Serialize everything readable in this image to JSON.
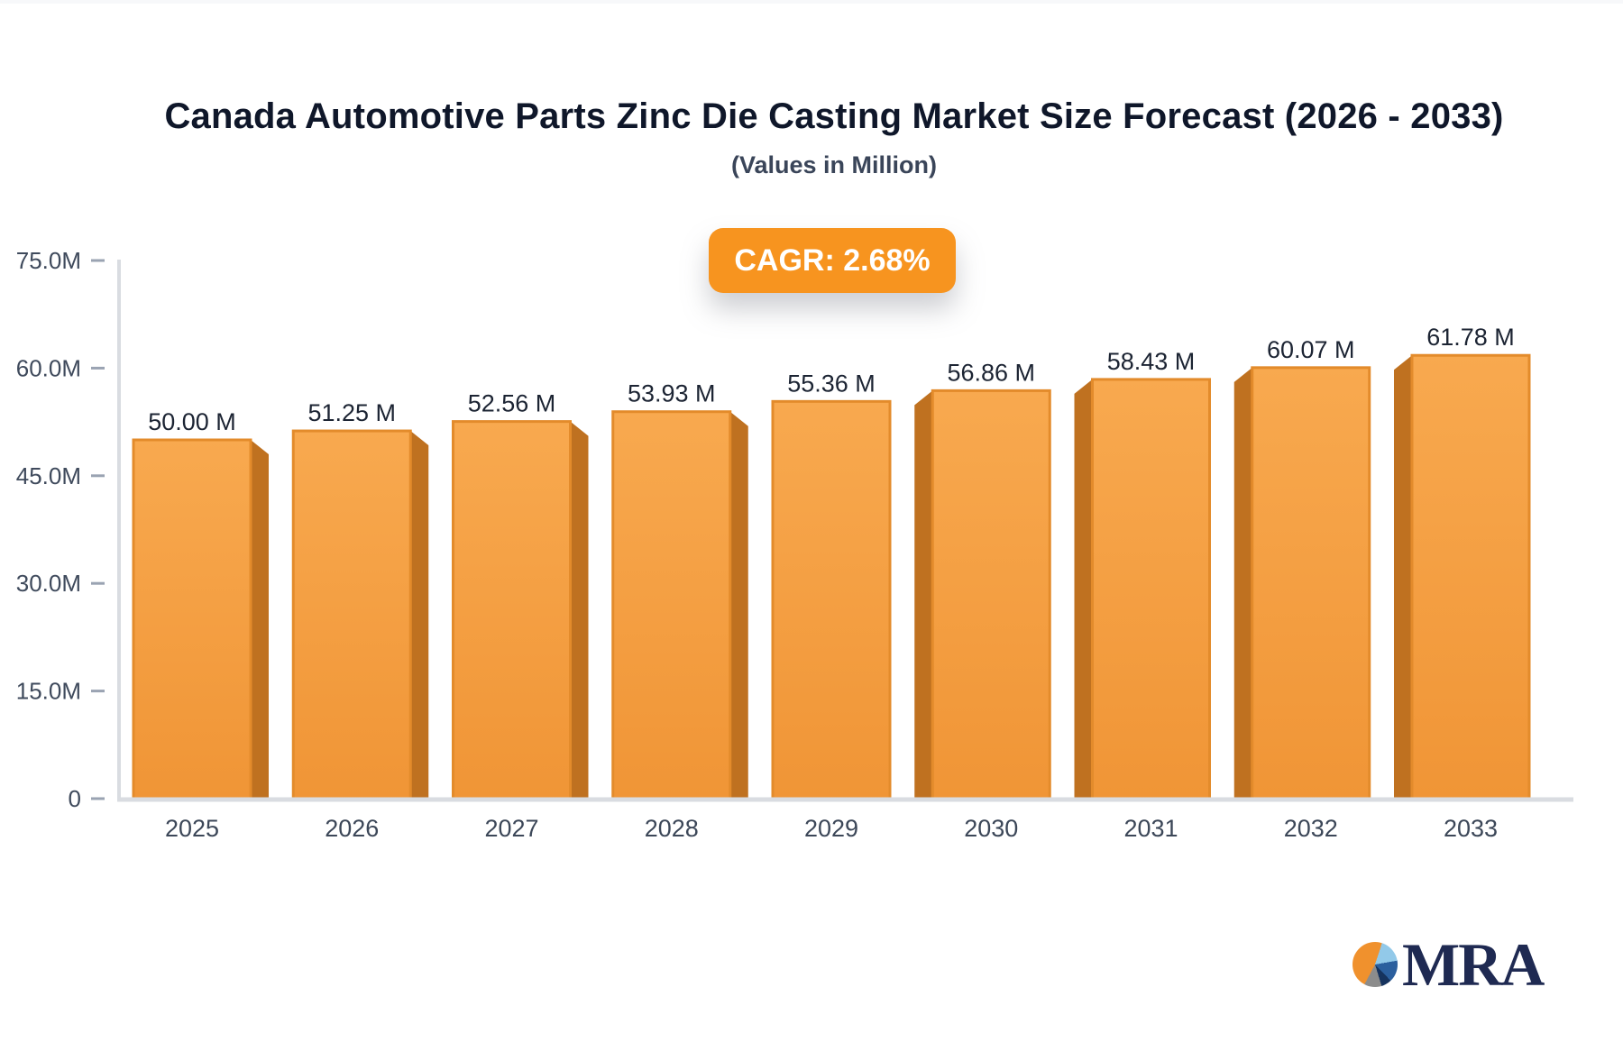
{
  "header": {
    "title": "Canada Automotive Parts Zinc Die Casting Market Size Forecast (2026 - 2033)",
    "subtitle": "(Values in Million)"
  },
  "badge": {
    "label": "CAGR: 2.68%"
  },
  "logo": {
    "text": "MRA"
  },
  "colors": {
    "bar_face_top": "#f8a94f",
    "bar_face_bottom": "#f09536",
    "bar_stroke": "#e38b2b",
    "bar_side": "#bf7120",
    "axis_line": "#d9dce1",
    "tick_dash": "#9aa3b2",
    "tick_text": "#3f4a5c",
    "year_text": "#3c4758",
    "value_text": "#1c2433",
    "badge_bg": "#f7941f",
    "badge_text": "#ffffff",
    "title_text": "#0f172a",
    "subtitle_text": "#3a4559"
  },
  "chart_data": {
    "type": "bar",
    "title": "Canada Automotive Parts Zinc Die Casting Market Size Forecast (2026 - 2033)",
    "subtitle": "(Values in Million)",
    "annotation": "CAGR: 2.68%",
    "categories": [
      "2025",
      "2026",
      "2027",
      "2028",
      "2029",
      "2030",
      "2031",
      "2032",
      "2033"
    ],
    "values": [
      50.0,
      51.25,
      52.56,
      53.93,
      55.36,
      56.86,
      58.43,
      60.07,
      61.78
    ],
    "value_labels": [
      "50.00 M",
      "51.25 M",
      "52.56 M",
      "53.93 M",
      "55.36 M",
      "56.86 M",
      "58.43 M",
      "60.07 M",
      "61.78 M"
    ],
    "xlabel": "",
    "ylabel": "",
    "ylim": [
      0,
      75
    ],
    "yticks": [
      {
        "value": 0,
        "label": "0"
      },
      {
        "value": 15,
        "label": "15.0M"
      },
      {
        "value": 30,
        "label": "30.0M"
      },
      {
        "value": 45,
        "label": "45.0M"
      },
      {
        "value": 60,
        "label": "60.0M"
      },
      {
        "value": 75,
        "label": "75.0M"
      }
    ],
    "grid": false,
    "legend": false,
    "bar_style": "pseudo-3d"
  }
}
